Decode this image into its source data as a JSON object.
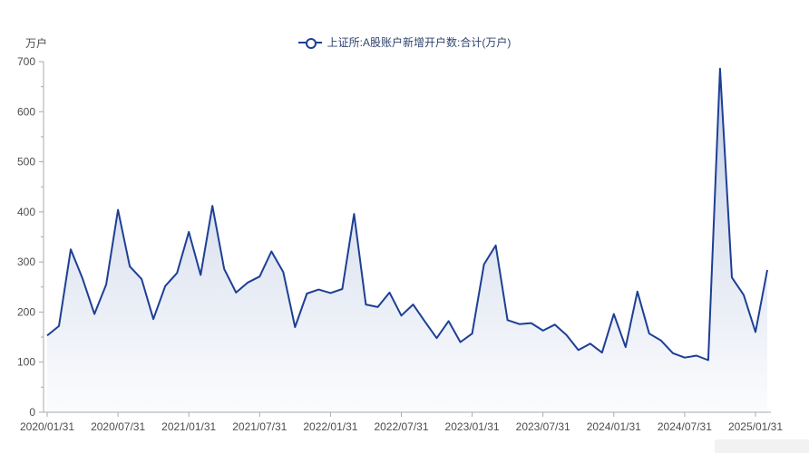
{
  "chart": {
    "unit_label": "万户",
    "legend_label": "上证所:A股账户新增开户数:合计(万户)",
    "colors": {
      "line": "#1d3f94",
      "axis": "#aaaaaa",
      "tick_label": "#4d4d4d",
      "legend_text": "#31446f",
      "area_top": "rgba(61,96,170,0.30)",
      "area_bottom": "rgba(61,96,170,0.02)"
    }
  },
  "chart_data": {
    "type": "line",
    "title": "上证所:A股账户新增开户数:合计(万户)",
    "xlabel": "",
    "ylabel": "万户",
    "ylim": [
      0,
      700
    ],
    "y_ticks": [
      0,
      100,
      200,
      300,
      400,
      500,
      600,
      700
    ],
    "y_minor_step": 50,
    "grid": "off",
    "legend_position": "top-center",
    "x_tick_labels": [
      "2020/01/31",
      "2020/07/31",
      "2021/01/31",
      "2021/07/31",
      "2022/01/31",
      "2022/07/31",
      "2023/01/31",
      "2023/07/31",
      "2024/01/31",
      "2024/07/31",
      "2025/01/31"
    ],
    "x": [
      "2020/01",
      "2020/02",
      "2020/03",
      "2020/04",
      "2020/05",
      "2020/06",
      "2020/07",
      "2020/08",
      "2020/09",
      "2020/10",
      "2020/11",
      "2020/12",
      "2021/01",
      "2021/02",
      "2021/03",
      "2021/04",
      "2021/05",
      "2021/06",
      "2021/07",
      "2021/08",
      "2021/09",
      "2021/10",
      "2021/11",
      "2021/12",
      "2022/01",
      "2022/02",
      "2022/03",
      "2022/04",
      "2022/05",
      "2022/06",
      "2022/07",
      "2022/08",
      "2022/09",
      "2022/10",
      "2022/11",
      "2022/12",
      "2023/01",
      "2023/02",
      "2023/03",
      "2023/04",
      "2023/05",
      "2023/06",
      "2023/07",
      "2023/08",
      "2023/09",
      "2023/10",
      "2023/11",
      "2023/12",
      "2024/01",
      "2024/02",
      "2024/03",
      "2024/04",
      "2024/05",
      "2024/06",
      "2024/07",
      "2024/08",
      "2024/09",
      "2024/10",
      "2024/11",
      "2024/12",
      "2025/01",
      "2025/02"
    ],
    "series": [
      {
        "name": "上证所:A股账户新增开户数:合计(万户)",
        "values": [
          153,
          172,
          325,
          267,
          196,
          255,
          404,
          291,
          266,
          186,
          252,
          278,
          360,
          274,
          412,
          286,
          239,
          259,
          271,
          321,
          280,
          170,
          237,
          245,
          238,
          246,
          396,
          215,
          210,
          239,
          193,
          215,
          181,
          148,
          182,
          140,
          157,
          295,
          333,
          184,
          176,
          178,
          163,
          175,
          154,
          124,
          137,
          119,
          196,
          130,
          241,
          157,
          143,
          118,
          109,
          113,
          104,
          686,
          269,
          234,
          160,
          284
        ]
      }
    ]
  }
}
